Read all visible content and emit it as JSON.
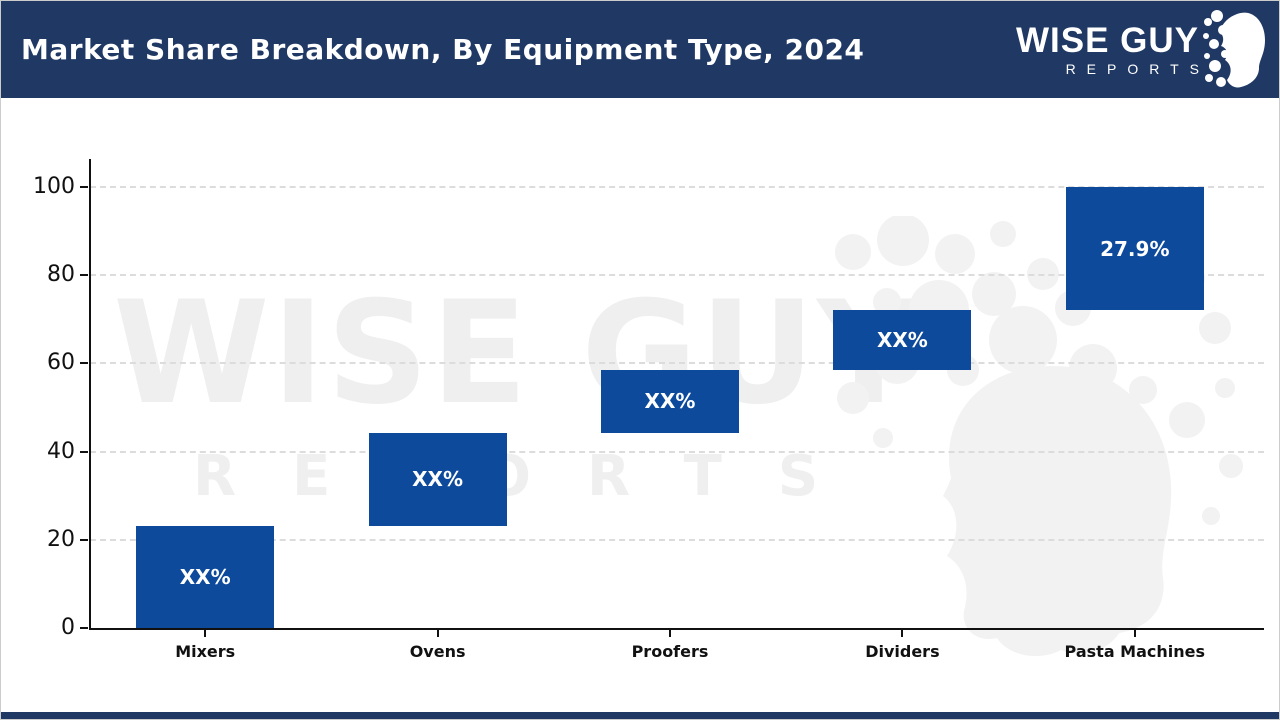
{
  "header": {
    "title": "Market Share Breakdown, By Equipment Type, 2024",
    "logo": {
      "name": "WISE GUY",
      "tagline": "REPORTS",
      "icon": "dotted-face-profile-icon"
    }
  },
  "watermark": {
    "line1": "WISE GUY",
    "line2": "REPORTS",
    "icon": "dotted-face-profile-watermark"
  },
  "colors": {
    "header_bg": "#1f3864",
    "footer_bg": "#1f3864",
    "bar": "#0d4a9c",
    "bar_label": "#ffffff",
    "grid": "#dcdcdc",
    "axis": "#111111",
    "watermark": "#efefef",
    "watermark_face": "#f2f2f2"
  },
  "chart_data": {
    "type": "bar",
    "subtype": "waterfall",
    "title": "Market Share Breakdown, By Equipment Type, 2024",
    "categories": [
      "Mixers",
      "Ovens",
      "Proofers",
      "Dividers",
      "Pasta Machines"
    ],
    "segments": [
      {
        "category": "Mixers",
        "from": 0,
        "to": 23.2,
        "label": "XX%"
      },
      {
        "category": "Ovens",
        "from": 23.2,
        "to": 44.2,
        "label": "XX%"
      },
      {
        "category": "Proofers",
        "from": 44.3,
        "to": 58.5,
        "label": "XX%"
      },
      {
        "category": "Dividers",
        "from": 58.5,
        "to": 72.1,
        "label": "XX%"
      },
      {
        "category": "Pasta Machines",
        "from": 72.1,
        "to": 100,
        "label": "27.9%"
      }
    ],
    "xlabel": "",
    "ylabel": "",
    "ylim": [
      0,
      100
    ],
    "yticks": [
      0,
      20,
      40,
      60,
      80,
      100
    ],
    "grid": "dashed-horizontal",
    "legend": "none"
  }
}
